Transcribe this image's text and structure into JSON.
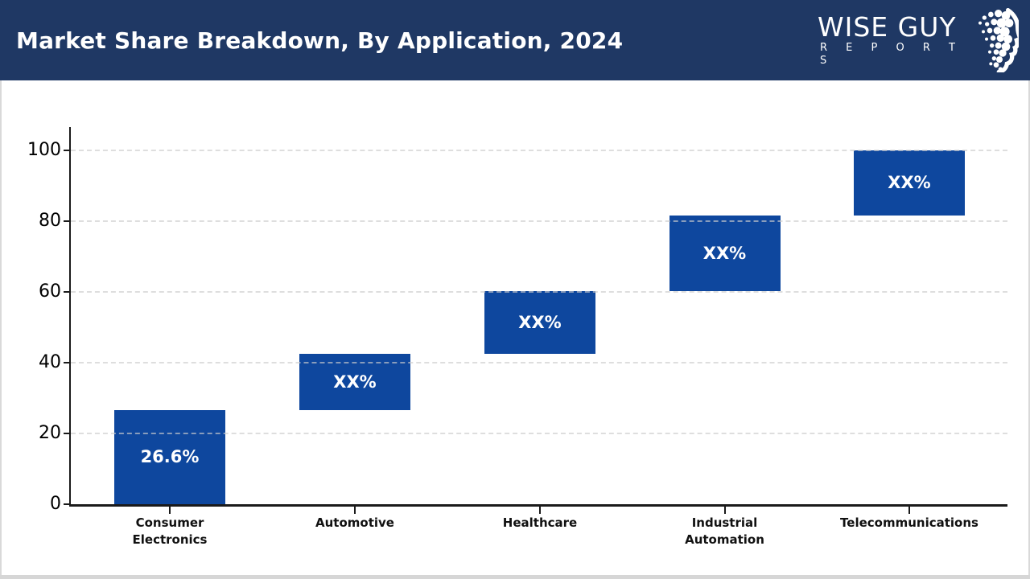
{
  "header": {
    "title": "Market Share Breakdown, By Application, 2024",
    "logo": {
      "line1": "WISE GUY",
      "line2": "R E P O R T S"
    }
  },
  "watermark": {
    "line1": "WISE GUY",
    "line2": "REPORTS"
  },
  "chart_data": {
    "type": "bar",
    "subtype": "waterfall",
    "title": "Market Share Breakdown, By Application, 2024",
    "categories": [
      "Consumer Electronics",
      "Automotive",
      "Healthcare",
      "Industrial Automation",
      "Telecommunications"
    ],
    "tick_labels": [
      "Consumer\nElectronics",
      "Automotive",
      "Healthcare",
      "Industrial\nAutomation",
      "Telecommunications"
    ],
    "segments": [
      {
        "category": "Consumer Electronics",
        "start": 0,
        "end": 26.6,
        "label": "26.6%"
      },
      {
        "category": "Automotive",
        "start": 26.6,
        "end": 42.4,
        "label": "XX%"
      },
      {
        "category": "Healthcare",
        "start": 42.4,
        "end": 60.2,
        "label": "XX%"
      },
      {
        "category": "Industrial Automation",
        "start": 60.2,
        "end": 81.6,
        "label": "XX%"
      },
      {
        "category": "Telecommunications",
        "start": 81.6,
        "end": 100,
        "label": "XX%"
      }
    ],
    "ylim": [
      0,
      105
    ],
    "yticks": [
      0,
      20,
      40,
      60,
      80,
      100
    ],
    "grid": "horizontal-dashed",
    "legend_position": "none",
    "bar_color": "#0e479e"
  },
  "colors": {
    "header_bg": "#1f3864",
    "bar": "#0e479e",
    "axis": "#1a1a1a",
    "grid": "#cdcdcd",
    "watermark": "#f2f2f2",
    "border": "#d9d9d9"
  }
}
